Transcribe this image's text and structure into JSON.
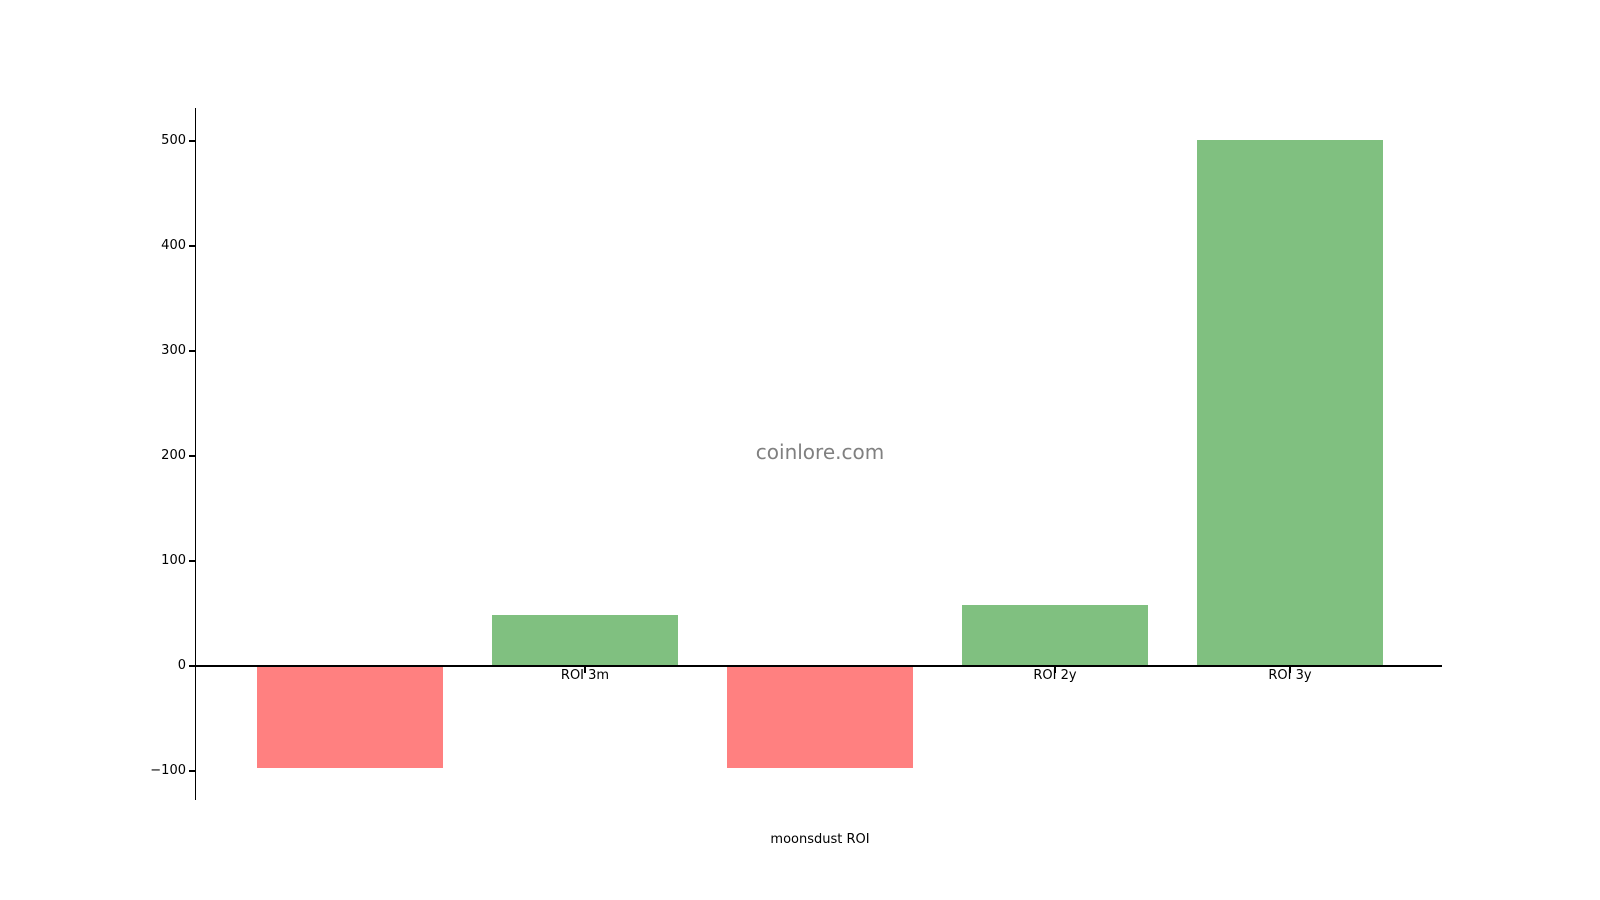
{
  "watermark": {
    "text": "coinlore.com",
    "color": "#808080"
  },
  "chart_data": {
    "type": "bar",
    "title": "",
    "xlabel": "moonsdust ROI",
    "ylabel": "",
    "categories": [
      "",
      "ROI 3m",
      "",
      "ROI 2y",
      "ROI 3y"
    ],
    "values": [
      -97,
      49,
      -97,
      58,
      501
    ],
    "bar_colors": [
      "#ff8080",
      "#80c080",
      "#ff8080",
      "#80c080",
      "#80c080"
    ],
    "positive_color": "#80c080",
    "negative_color": "#ff8080",
    "yticks": [
      -100,
      0,
      100,
      200,
      300,
      400,
      500
    ],
    "ylim": [
      -127,
      531
    ],
    "xlim": [
      -0.65,
      4.65
    ],
    "grid": false,
    "legend": false,
    "axis_color": "#000000",
    "background_color": "#ffffff"
  }
}
